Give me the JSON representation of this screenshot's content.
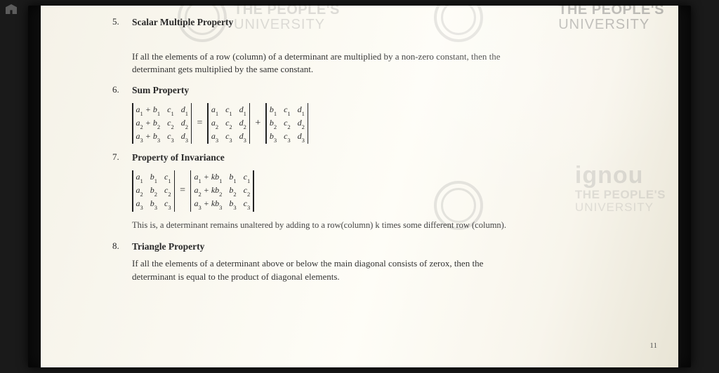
{
  "watermarks": {
    "line1": "THE PEOPLE'S",
    "line2": "UNIVERSITY",
    "faded_brand": "ignou"
  },
  "prop5": {
    "num": "5.",
    "title": "Scalar Multiple Property",
    "body": "If all the elements of a row (column) of a determinant are multiplied by a non-zero constant, then the determinant gets multiplied by the same constant."
  },
  "prop6": {
    "num": "6.",
    "title": "Sum Property",
    "matrixL": [
      [
        "a₁ + b₁",
        "c₁",
        "d₁"
      ],
      [
        "a₂ + b₂",
        "c₂",
        "d₂"
      ],
      [
        "a₃ + b₃",
        "c₃",
        "d₃"
      ]
    ],
    "matrixR1": [
      [
        "a₁",
        "c₁",
        "d₁"
      ],
      [
        "a₂",
        "c₂",
        "d₂"
      ],
      [
        "a₃",
        "c₃",
        "d₃"
      ]
    ],
    "matrixR2": [
      [
        "b₁",
        "c₁",
        "d₁"
      ],
      [
        "b₂",
        "c₂",
        "d₂"
      ],
      [
        "b₃",
        "c₃",
        "d₃"
      ]
    ],
    "eq_sign": "=",
    "plus_sign": "+"
  },
  "prop7": {
    "num": "7.",
    "title": "Property of Invariance",
    "matrixL": [
      [
        "a₁",
        "b₁",
        "c₁"
      ],
      [
        "a₂",
        "b₂",
        "c₂"
      ],
      [
        "a₃",
        "b₃",
        "c₃"
      ]
    ],
    "matrixR": [
      [
        "a₁ + kb₁",
        "b₁",
        "c₁"
      ],
      [
        "a₂ + kb₂",
        "b₂",
        "c₂"
      ],
      [
        "a₃ + kb₃",
        "b₃",
        "c₃"
      ]
    ],
    "eq_sign": "=",
    "note": "This is, a determinant remains unaltered by adding to a row(column) k times some different row (column)."
  },
  "prop8": {
    "num": "8.",
    "title": "Triangle Property",
    "body": "If all the elements of a determinant above or below the main diagonal consists of zerox, then the determinant is equal to the product of diagonal elements."
  },
  "page_number": "11"
}
